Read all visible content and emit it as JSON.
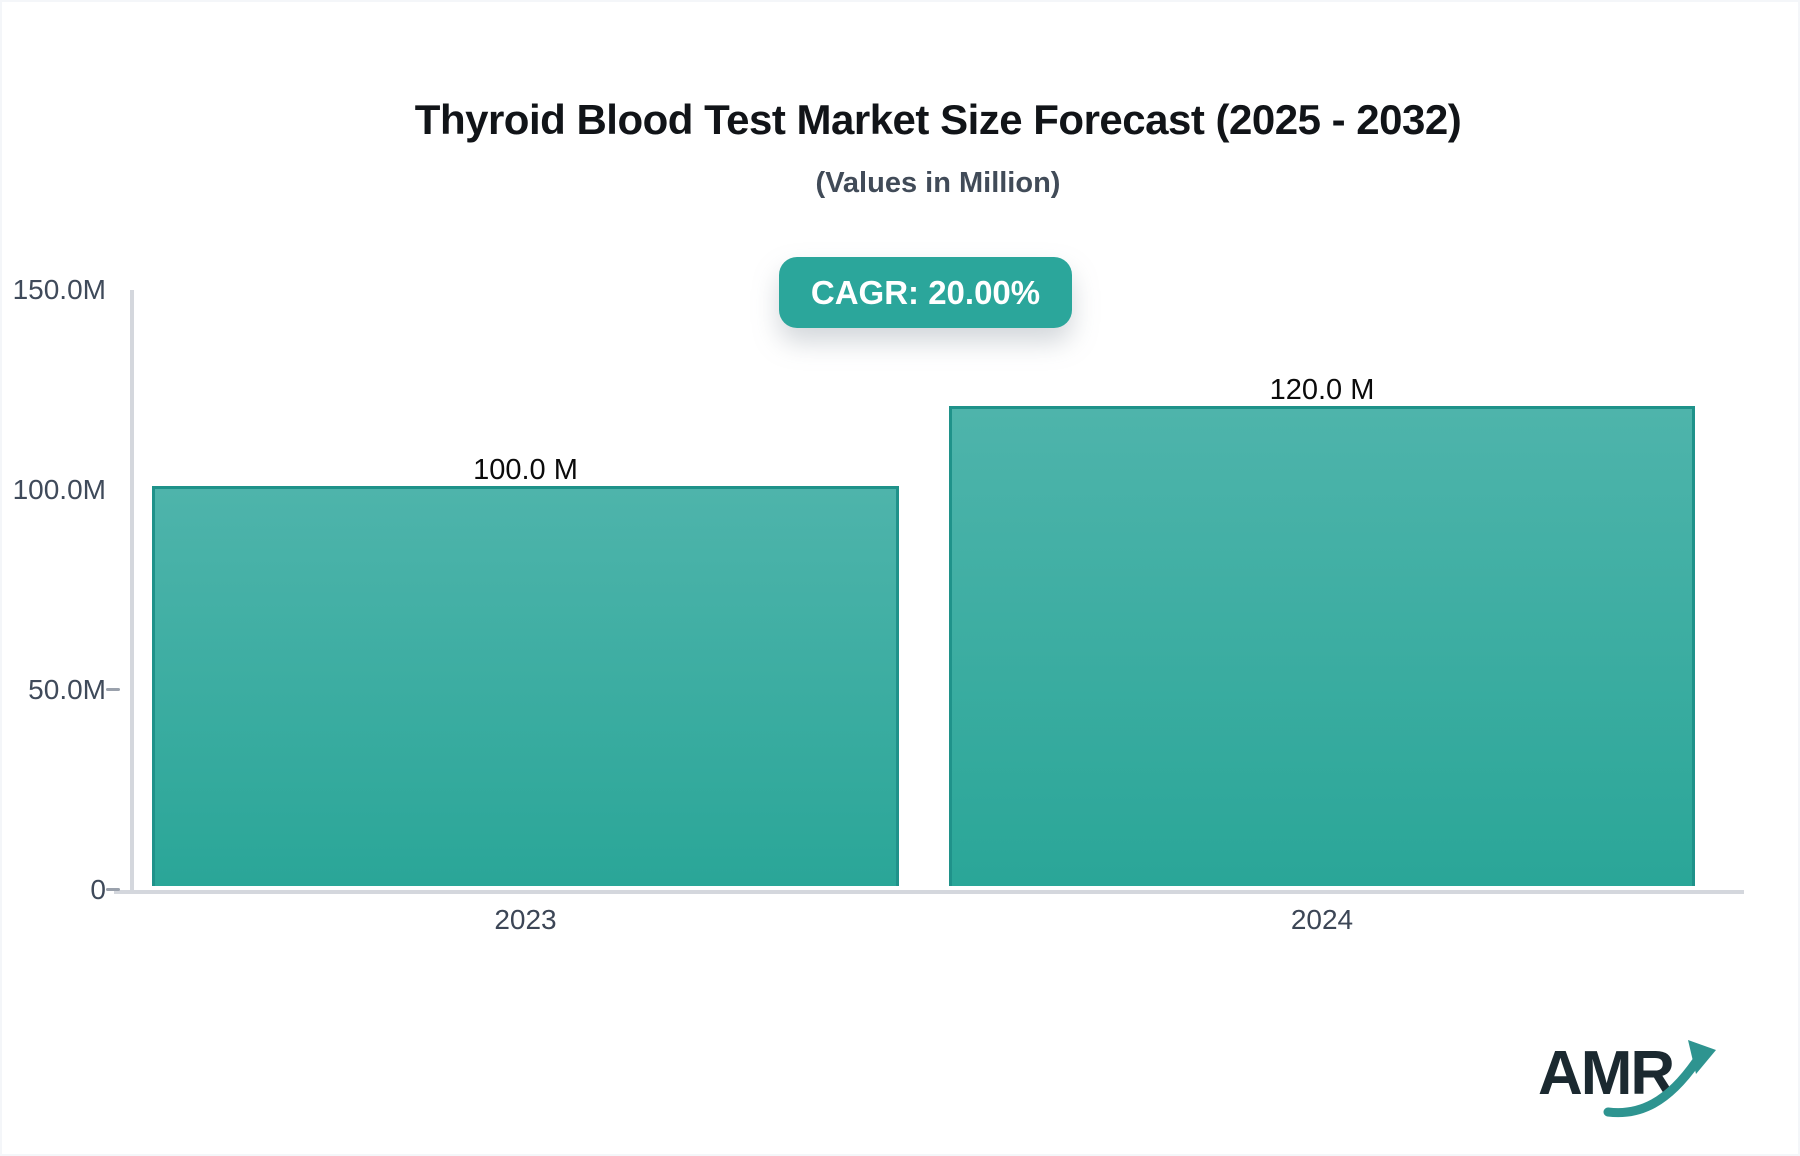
{
  "header": {
    "title": "Thyroid Blood Test Market Size Forecast (2025 - 2032)",
    "subtitle": "(Values in Million)",
    "cagr_badge": "CAGR: 20.00%"
  },
  "chart_data": {
    "type": "bar",
    "title": "Thyroid Blood Test Market Size Forecast (2025 - 2032)",
    "subtitle": "(Values in Million)",
    "unit": "Million",
    "cagr_percent": "20.00%",
    "categories": [
      "2023",
      "2024"
    ],
    "values": [
      100.0,
      120.0
    ],
    "value_labels": [
      "100.0 M",
      "120.0 M"
    ],
    "y_axis": {
      "ticks": [
        "150.0M",
        "100.0M",
        "50.0M",
        "0"
      ],
      "range_millions": [
        0,
        150
      ]
    },
    "grid": false,
    "legend_position": "none"
  },
  "colors": {
    "accent_teal": "#2ba69b",
    "bar_gradient_top": "#4eb4ab",
    "bar_gradient_bottom": "#2aa698",
    "bar_border": "#1f928a",
    "axis_line": "#d4d7dd",
    "tick_label": "#3f4a5a",
    "title_text": "#111418",
    "logo_dark": "#1b2930",
    "logo_teal": "#2e9490"
  },
  "footer": {
    "logo_text": "AMR"
  }
}
